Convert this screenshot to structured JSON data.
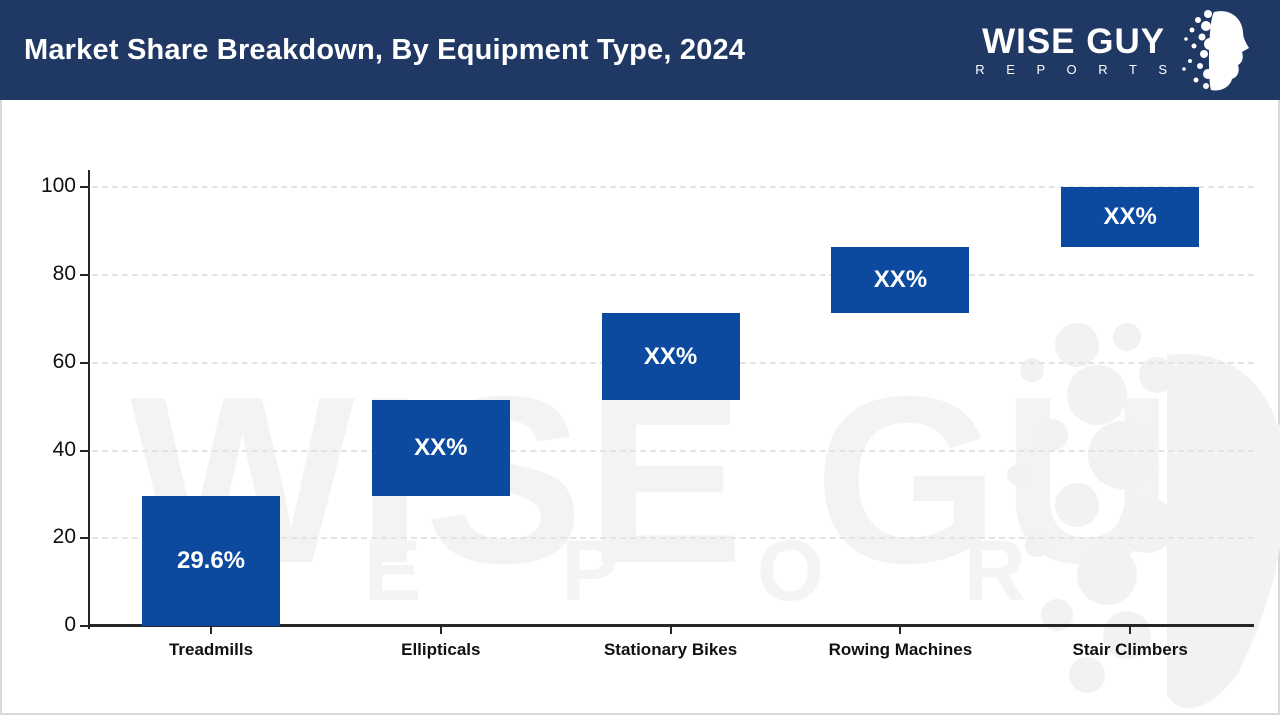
{
  "header": {
    "title": "Market Share Breakdown, By Equipment Type, 2024",
    "background_color": "#1f3864",
    "logo": {
      "line1": "WISE GUY",
      "line2": "R E P O R T S"
    }
  },
  "watermark": {
    "line1": "WISE GUY",
    "line2": "R E P O R T S"
  },
  "chart_data": {
    "type": "bar",
    "subtype": "waterfall",
    "title": "Market Share Breakdown, By Equipment Type, 2024",
    "categories": [
      "Treadmills",
      "Ellipticals",
      "Stationary Bikes",
      "Rowing Machines",
      "Stair Climbers"
    ],
    "segments": [
      {
        "category": "Treadmills",
        "start": 0,
        "end": 29.6,
        "label": "29.6%"
      },
      {
        "category": "Ellipticals",
        "start": 29.6,
        "end": 51.5,
        "label": "XX%"
      },
      {
        "category": "Stationary Bikes",
        "start": 51.5,
        "end": 71.3,
        "label": "XX%"
      },
      {
        "category": "Rowing Machines",
        "start": 71.3,
        "end": 86.3,
        "label": "XX%"
      },
      {
        "category": "Stair Climbers",
        "start": 86.3,
        "end": 100,
        "label": "XX%"
      }
    ],
    "xlabel": "",
    "ylabel": "",
    "yticks": [
      0,
      20,
      40,
      60,
      80,
      100
    ],
    "ylim": [
      0,
      104
    ],
    "grid": "horizontal-dashed",
    "legend": "none",
    "bar_color": "#0b4a9f",
    "bar_label_color": "#ffffff"
  }
}
